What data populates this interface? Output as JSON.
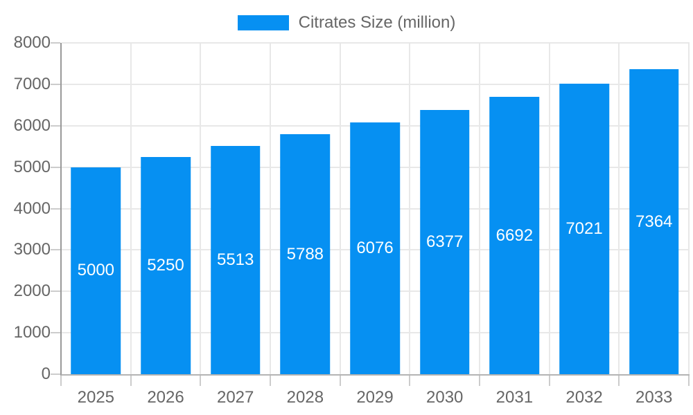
{
  "legend": {
    "label": "Citrates Size (million)",
    "swatch_color": "#0690F2"
  },
  "chart_data": {
    "type": "bar",
    "title": "Citrates Size (million)",
    "categories": [
      "2025",
      "2026",
      "2027",
      "2028",
      "2029",
      "2030",
      "2031",
      "2032",
      "2033"
    ],
    "values": [
      5000,
      5250,
      5513,
      5788,
      6076,
      6377,
      6692,
      7021,
      7364
    ],
    "series_name": "Citrates Size (million)",
    "xlabel": "",
    "ylabel": "",
    "ylim": [
      0,
      8000
    ],
    "ytick_step": 1000,
    "yticks": [
      0,
      1000,
      2000,
      3000,
      4000,
      5000,
      6000,
      7000,
      8000
    ],
    "grid": true,
    "legend_position": "top-center",
    "bar_labels_shown": true,
    "colors": {
      "bar": "#0690F2",
      "bar_label": "#ffffff",
      "axis_text": "#666666",
      "gridline": "#e8e8e8",
      "tick": "#cccccc",
      "y_axis_line": "#999999",
      "x_axis_line": "#b3b3b3",
      "background": "#ffffff"
    }
  }
}
